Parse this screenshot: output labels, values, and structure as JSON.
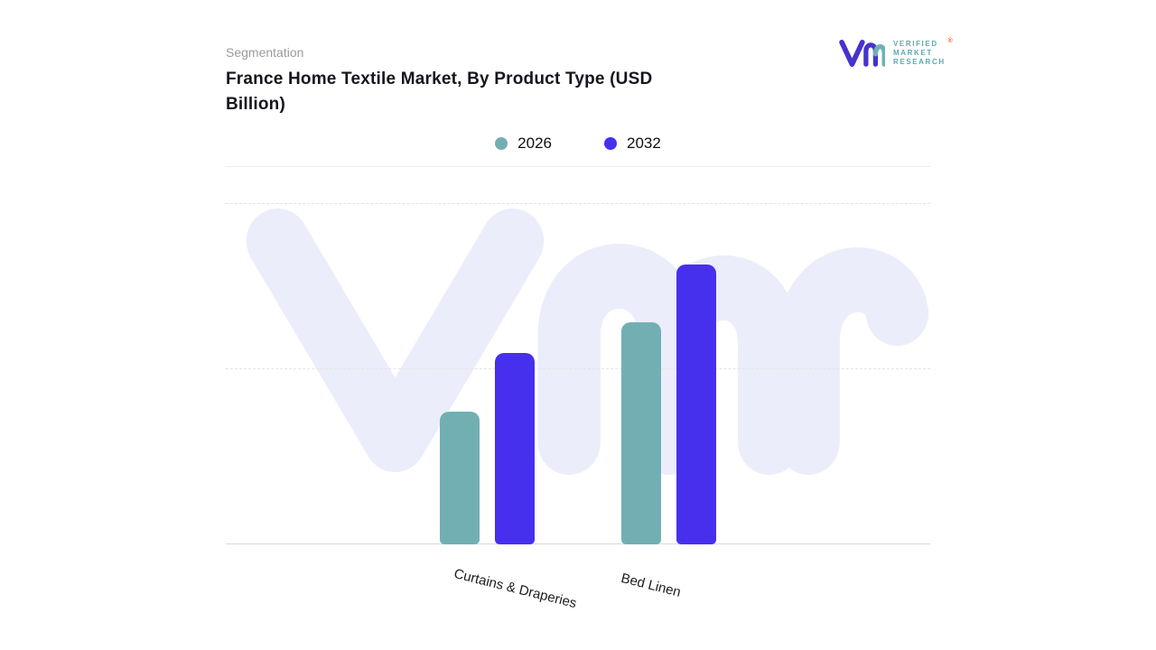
{
  "header": {
    "eyebrow": "Segmentation",
    "title": "France Home Textile Market, By Product Type (USD Billion)"
  },
  "brand": {
    "name_line1": "VERIFIED",
    "name_line2": "MARKET",
    "name_line3": "RESEARCH",
    "registered_mark": "®"
  },
  "legend": {
    "items": [
      {
        "label": "2026",
        "color": "#72afb3"
      },
      {
        "label": "2032",
        "color": "#4630ee"
      }
    ]
  },
  "chart_data": {
    "type": "bar",
    "title": "France Home Textile Market, By Product Type (USD Billion)",
    "categories": [
      "Curtains & Draperies",
      "Bed Linen"
    ],
    "series": [
      {
        "name": "2026",
        "color": "#72afb3",
        "values": [
          0.39,
          0.65
        ]
      },
      {
        "name": "2032",
        "color": "#4630ee",
        "values": [
          0.56,
          0.82
        ]
      }
    ],
    "xlabel": "",
    "ylabel": "",
    "ylim": [
      0,
      1
    ],
    "note": "no numeric axis labels shown; values are relative bar heights",
    "grid": "horizontal dashed",
    "legend_position": "top center"
  },
  "colors": {
    "watermark": "#ecedfa",
    "brand_purple": "#4533cd",
    "brand_teal": "#6db1b5"
  }
}
